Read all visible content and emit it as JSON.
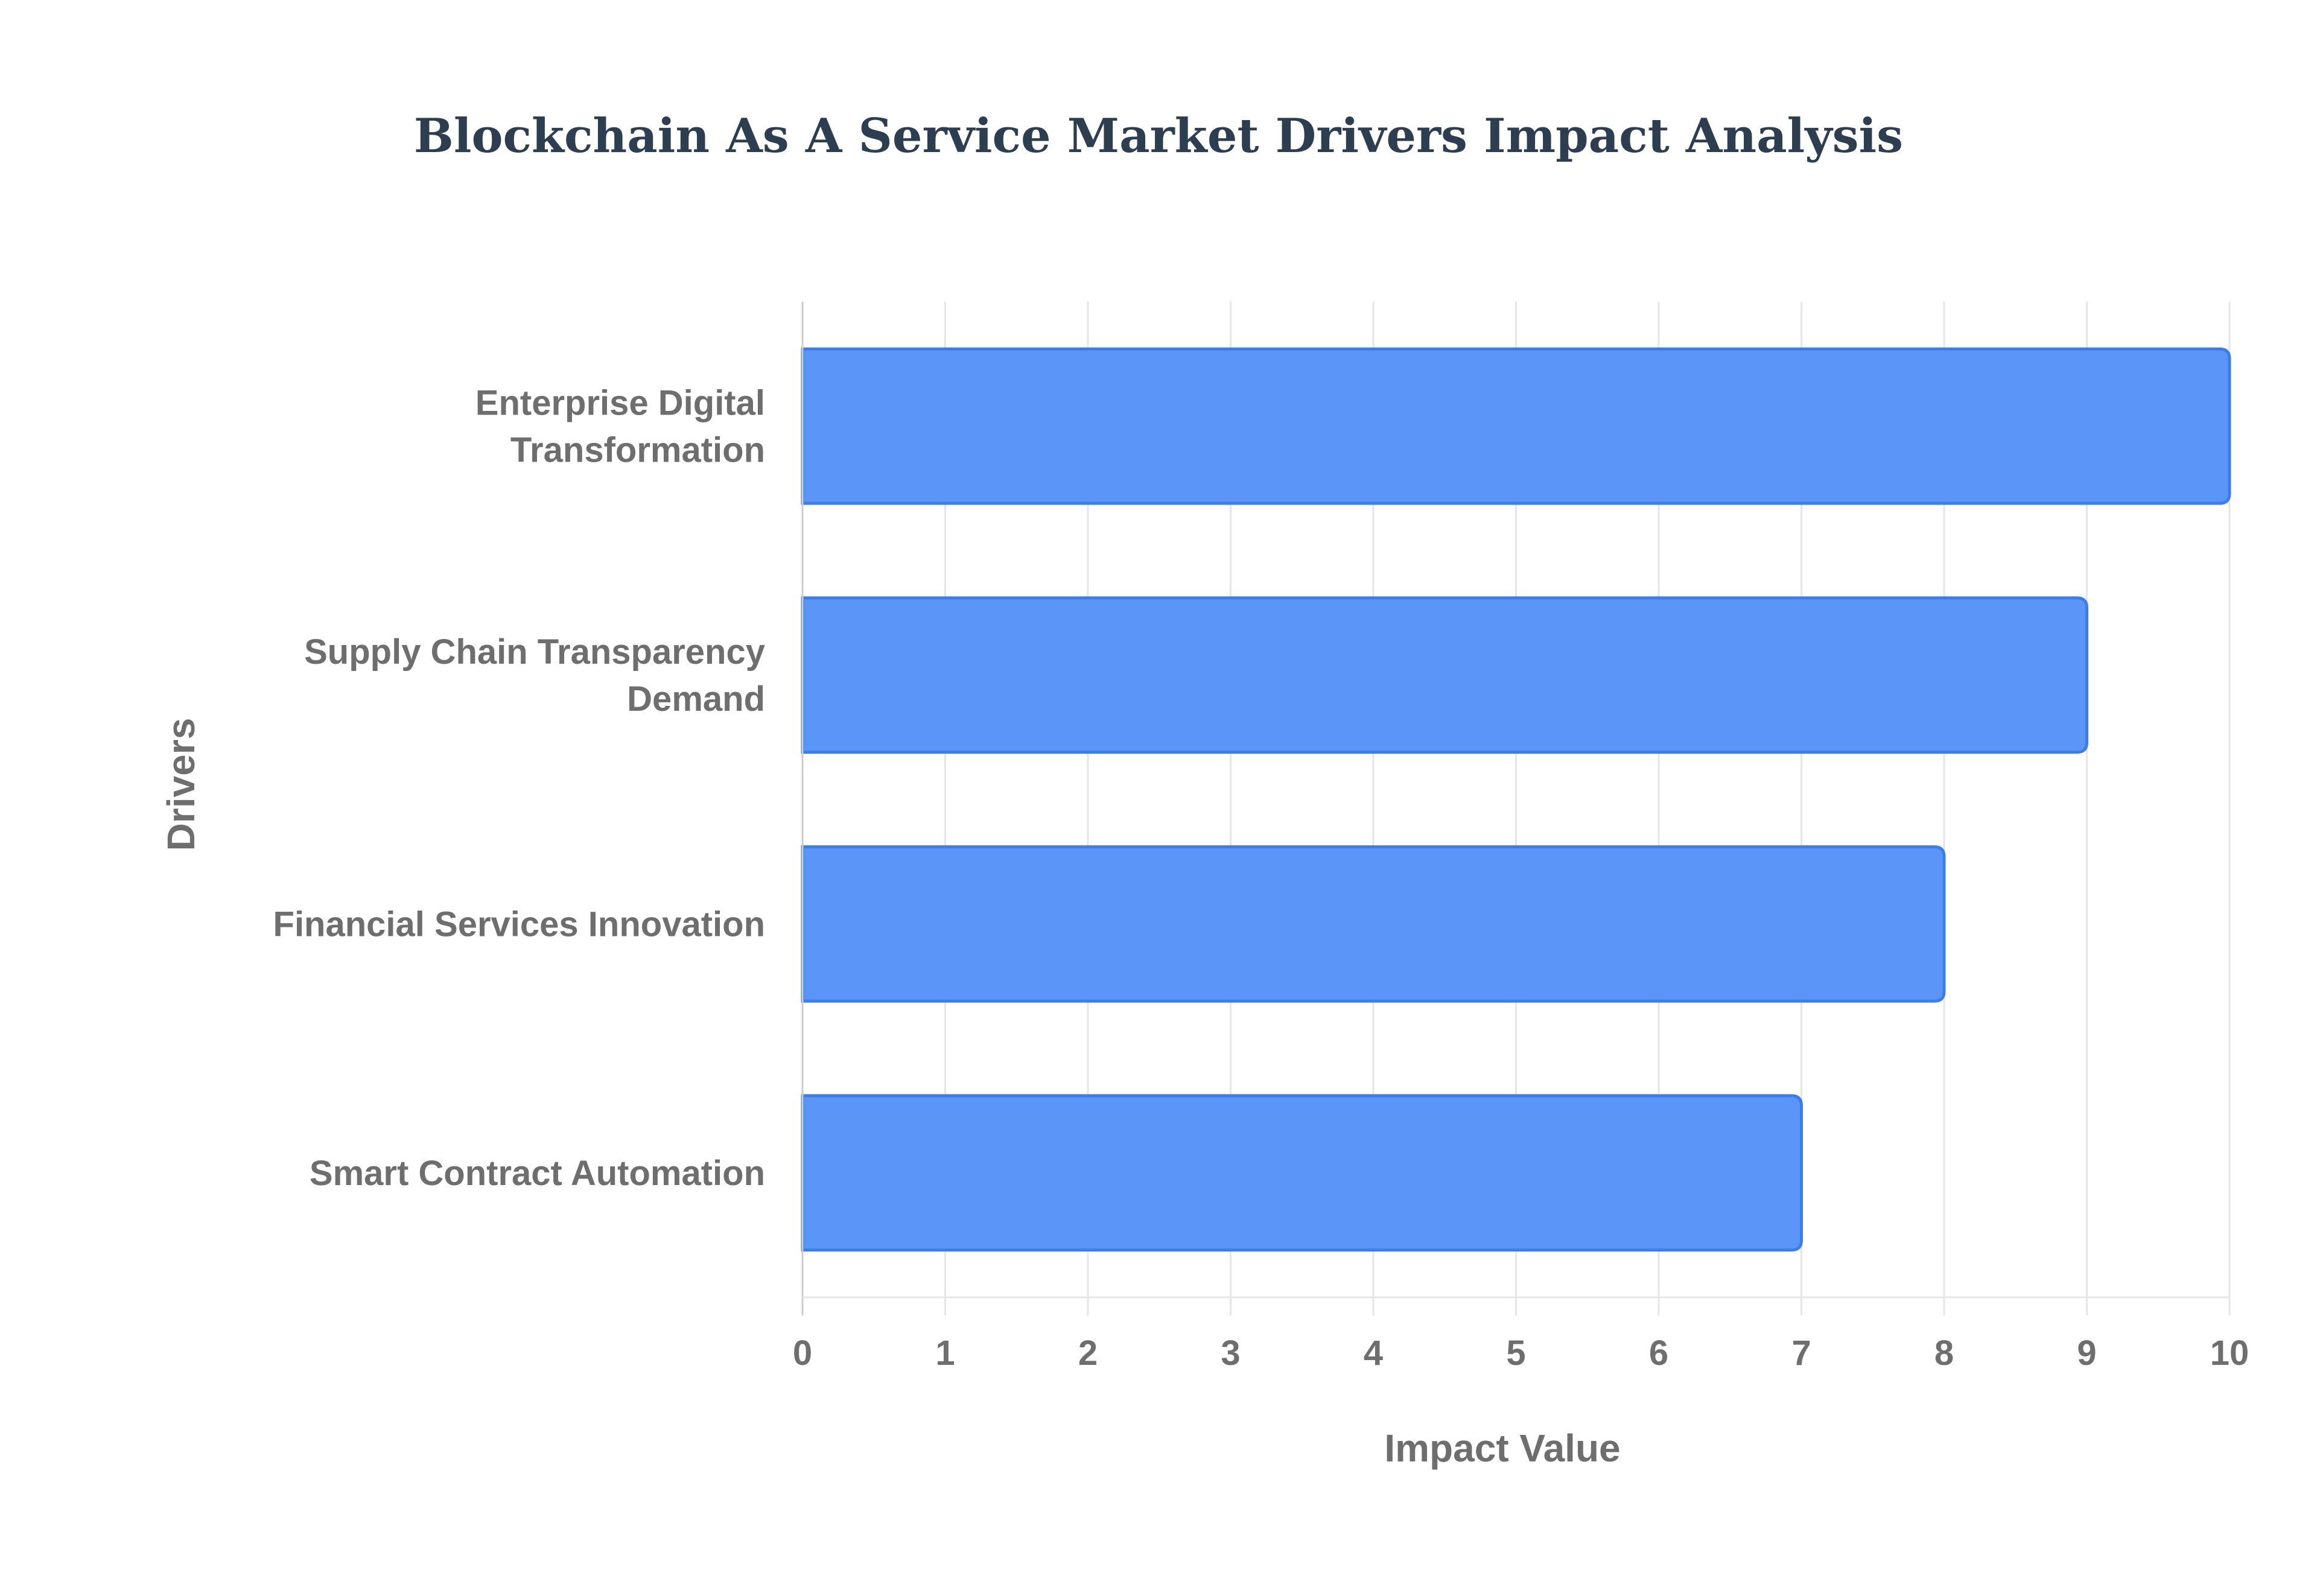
{
  "chart_data": {
    "type": "bar",
    "orientation": "horizontal",
    "title": "Blockchain As A Service Market Drivers Impact Analysis",
    "xlabel": "Impact Value",
    "ylabel": "Drivers",
    "categories": [
      "Enterprise Digital Transformation",
      "Supply Chain Transparency Demand",
      "Financial Services Innovation",
      "Smart Contract Automation"
    ],
    "category_label_lines": [
      [
        "Enterprise Digital",
        "Transformation"
      ],
      [
        "Supply Chain Transparency",
        "Demand"
      ],
      [
        "Financial Services Innovation"
      ],
      [
        "Smart Contract Automation"
      ]
    ],
    "values": [
      10,
      9,
      8,
      7
    ],
    "xlim": [
      0,
      10
    ],
    "xticks": [
      "0",
      "1",
      "2",
      "3",
      "4",
      "5",
      "6",
      "7",
      "8",
      "9",
      "10"
    ],
    "grid": true,
    "legend": "none"
  },
  "colors": {
    "bar_fill": "#5B95F7",
    "bar_stroke": "#3B7DEB",
    "title": "#2C3E50",
    "text": "#6E6E6E",
    "grid": "#E6E6E6",
    "axis": "#CCCCCC"
  }
}
